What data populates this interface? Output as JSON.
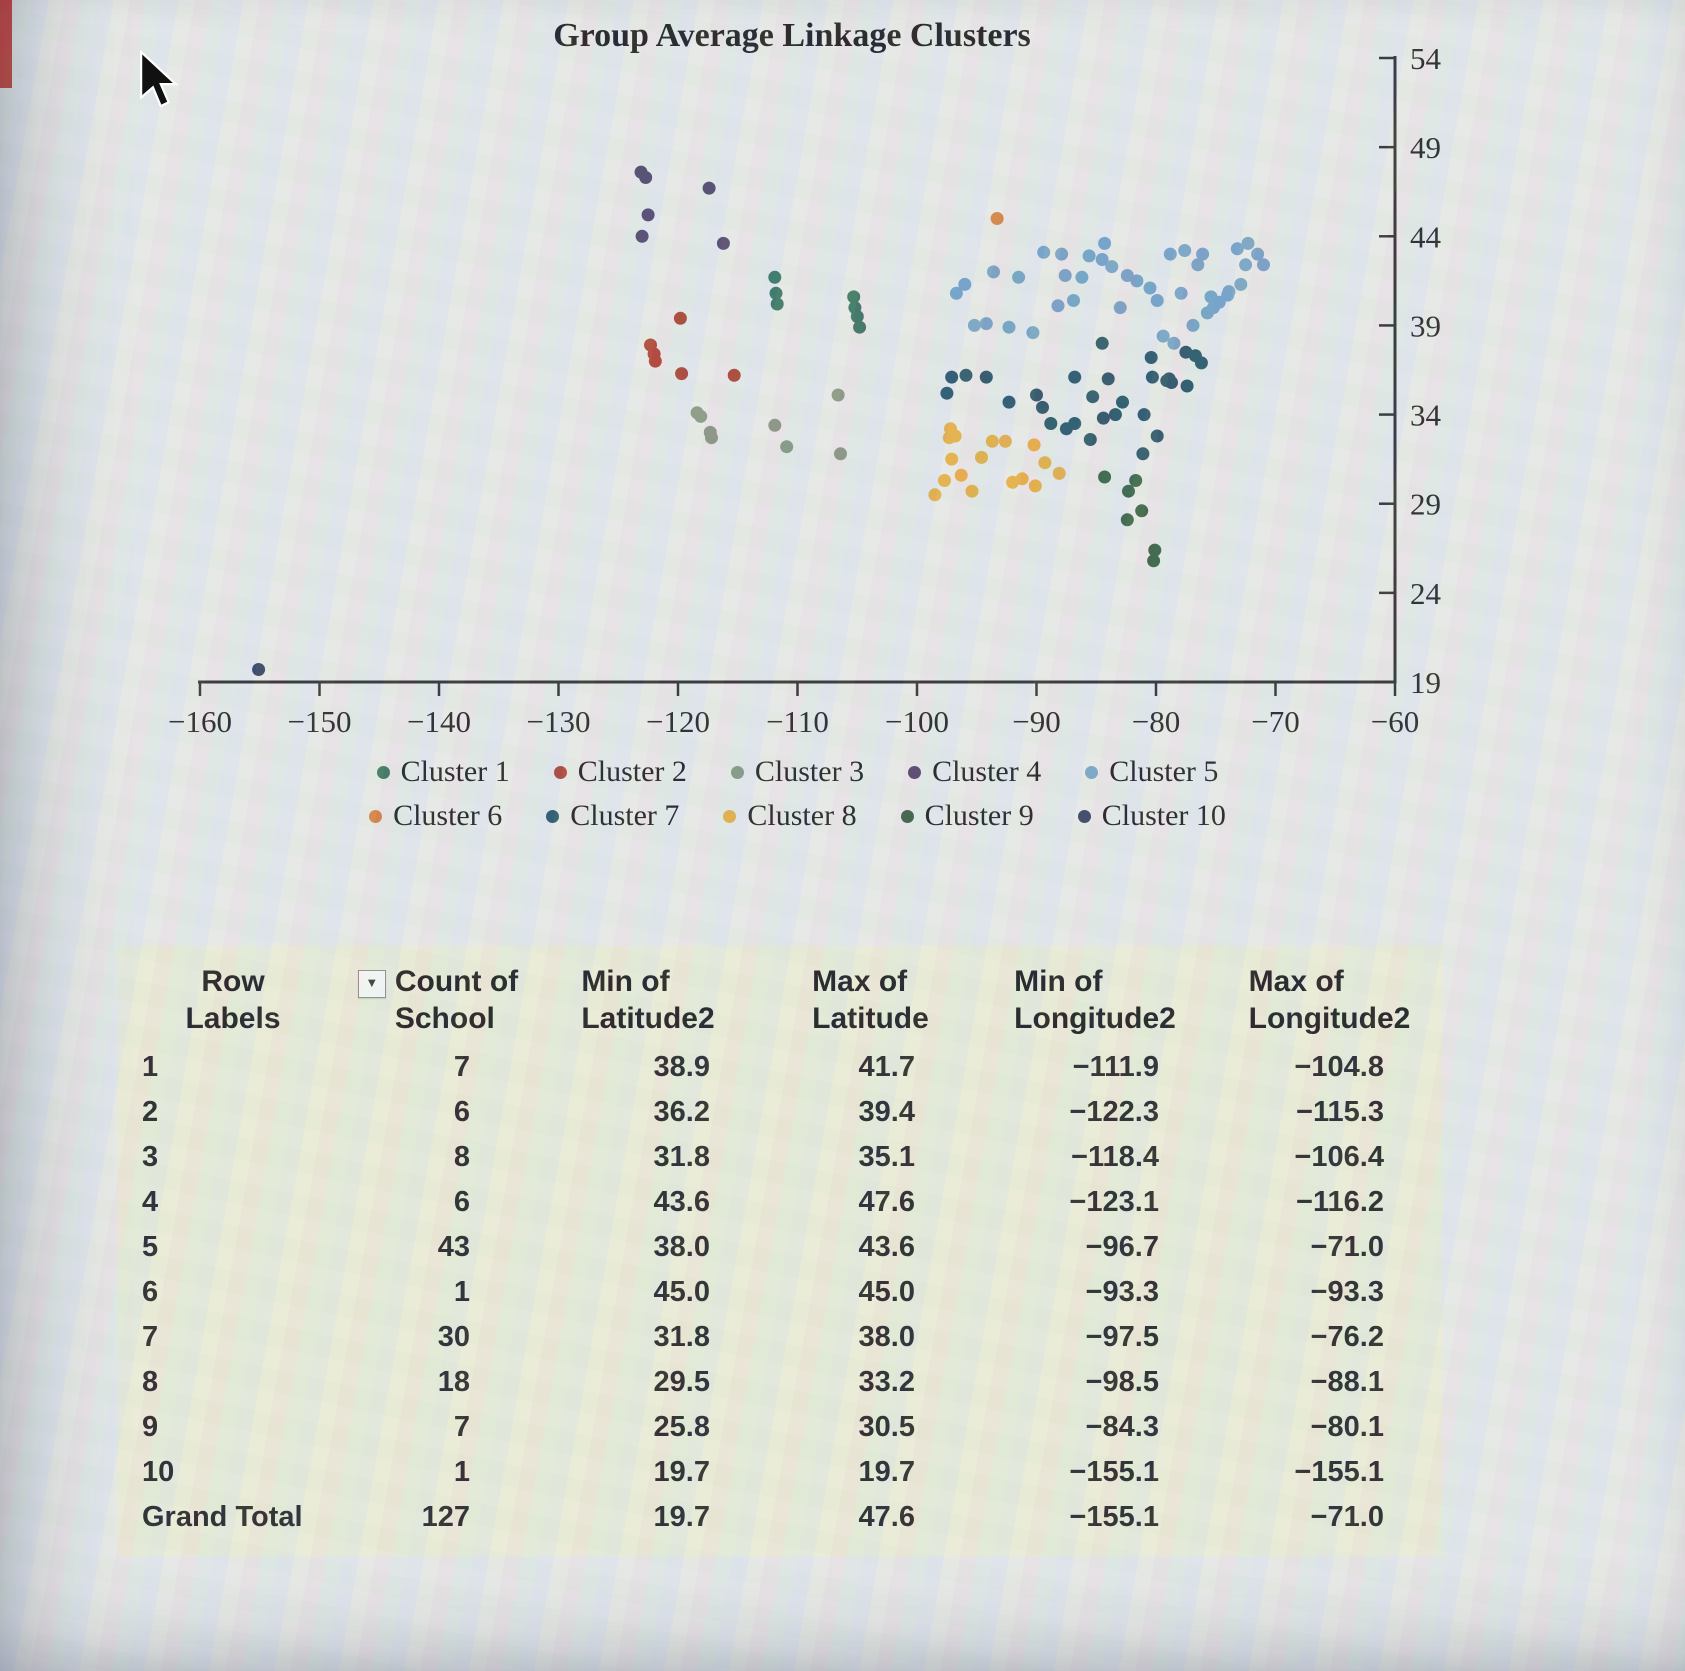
{
  "chart_data": {
    "type": "scatter",
    "title": "Group Average Linkage Clusters",
    "xlabel": "",
    "ylabel": "",
    "xlim": [
      -160,
      -60
    ],
    "ylim": [
      19,
      54
    ],
    "x_ticks": [
      -160,
      -150,
      -140,
      -130,
      -120,
      -110,
      -100,
      -90,
      -80,
      -70,
      -60
    ],
    "y_ticks": [
      19,
      24,
      29,
      34,
      39,
      44,
      49,
      54
    ],
    "grid": false,
    "legend_position": "bottom",
    "series": [
      {
        "name": "Cluster 1",
        "color": "#2e6f5e",
        "points": [
          [
            -111.9,
            41.7
          ],
          [
            -111.8,
            40.8
          ],
          [
            -111.7,
            40.2
          ],
          [
            -105.3,
            40.6
          ],
          [
            -105.2,
            40.0
          ],
          [
            -105.0,
            39.5
          ],
          [
            -104.8,
            38.9
          ]
        ]
      },
      {
        "name": "Cluster 2",
        "color": "#a93a2e",
        "points": [
          [
            -122.3,
            37.9
          ],
          [
            -122.0,
            37.4
          ],
          [
            -121.9,
            37.0
          ],
          [
            -119.8,
            39.4
          ],
          [
            -119.7,
            36.3
          ],
          [
            -115.3,
            36.2
          ]
        ]
      },
      {
        "name": "Cluster 3",
        "color": "#7f9180",
        "points": [
          [
            -118.4,
            34.1
          ],
          [
            -118.1,
            33.9
          ],
          [
            -117.3,
            33.0
          ],
          [
            -117.2,
            32.7
          ],
          [
            -111.9,
            33.4
          ],
          [
            -110.9,
            32.2
          ],
          [
            -106.6,
            35.1
          ],
          [
            -106.4,
            31.8
          ]
        ]
      },
      {
        "name": "Cluster 4",
        "color": "#4a3f68",
        "points": [
          [
            -123.1,
            47.6
          ],
          [
            -122.7,
            47.3
          ],
          [
            -117.4,
            46.7
          ],
          [
            -123.0,
            44.0
          ],
          [
            -122.5,
            45.2
          ],
          [
            -116.2,
            43.6
          ]
        ]
      },
      {
        "name": "Cluster 5",
        "color": "#6d9dc5",
        "points": [
          [
            -71.0,
            42.4
          ],
          [
            -71.5,
            43.0
          ],
          [
            -72.3,
            43.6
          ],
          [
            -72.9,
            41.3
          ],
          [
            -73.2,
            43.3
          ],
          [
            -73.9,
            40.9
          ],
          [
            -74.0,
            40.7
          ],
          [
            -74.7,
            40.3
          ],
          [
            -75.2,
            40.0
          ],
          [
            -75.7,
            39.7
          ],
          [
            -76.5,
            42.4
          ],
          [
            -76.1,
            43.0
          ],
          [
            -76.9,
            39.0
          ],
          [
            -77.6,
            43.2
          ],
          [
            -77.9,
            40.8
          ],
          [
            -78.8,
            43.0
          ],
          [
            -78.5,
            38.0
          ],
          [
            -79.4,
            38.4
          ],
          [
            -79.9,
            40.4
          ],
          [
            -80.5,
            41.1
          ],
          [
            -81.6,
            41.5
          ],
          [
            -82.4,
            41.8
          ],
          [
            -83.0,
            40.0
          ],
          [
            -83.7,
            42.3
          ],
          [
            -84.5,
            42.7
          ],
          [
            -84.3,
            43.6
          ],
          [
            -85.6,
            42.9
          ],
          [
            -86.2,
            41.7
          ],
          [
            -86.9,
            40.4
          ],
          [
            -87.6,
            41.8
          ],
          [
            -87.9,
            43.0
          ],
          [
            -88.2,
            40.1
          ],
          [
            -89.4,
            43.1
          ],
          [
            -90.3,
            38.6
          ],
          [
            -91.5,
            41.7
          ],
          [
            -92.3,
            38.9
          ],
          [
            -93.6,
            42.0
          ],
          [
            -94.2,
            39.1
          ],
          [
            -95.2,
            39.0
          ],
          [
            -96.0,
            41.3
          ],
          [
            -96.7,
            40.8
          ],
          [
            -75.4,
            40.6
          ],
          [
            -72.5,
            42.4
          ]
        ]
      },
      {
        "name": "Cluster 6",
        "color": "#d0793c",
        "points": [
          [
            -93.3,
            45.0
          ]
        ]
      },
      {
        "name": "Cluster 7",
        "color": "#1f4e64",
        "points": [
          [
            -97.5,
            35.2
          ],
          [
            -97.1,
            36.1
          ],
          [
            -95.9,
            36.2
          ],
          [
            -94.2,
            36.1
          ],
          [
            -92.3,
            34.7
          ],
          [
            -90.0,
            35.1
          ],
          [
            -89.5,
            34.4
          ],
          [
            -88.8,
            33.5
          ],
          [
            -87.5,
            33.2
          ],
          [
            -86.8,
            36.1
          ],
          [
            -86.8,
            33.5
          ],
          [
            -85.5,
            32.6
          ],
          [
            -85.3,
            35.0
          ],
          [
            -84.4,
            33.8
          ],
          [
            -84.0,
            36.0
          ],
          [
            -84.5,
            38.0
          ],
          [
            -83.4,
            34.0
          ],
          [
            -82.8,
            34.7
          ],
          [
            -81.0,
            34.0
          ],
          [
            -81.1,
            31.8
          ],
          [
            -80.3,
            36.1
          ],
          [
            -79.9,
            32.8
          ],
          [
            -79.1,
            35.9
          ],
          [
            -78.9,
            36.0
          ],
          [
            -78.7,
            35.8
          ],
          [
            -80.4,
            37.2
          ],
          [
            -77.5,
            37.5
          ],
          [
            -76.7,
            37.3
          ],
          [
            -76.2,
            36.9
          ],
          [
            -77.4,
            35.6
          ]
        ]
      },
      {
        "name": "Cluster 8",
        "color": "#e3a93f",
        "points": [
          [
            -98.5,
            29.5
          ],
          [
            -97.7,
            30.3
          ],
          [
            -97.1,
            31.5
          ],
          [
            -96.3,
            30.6
          ],
          [
            -95.4,
            29.7
          ],
          [
            -96.8,
            32.8
          ],
          [
            -97.3,
            32.7
          ],
          [
            -97.1,
            32.9
          ],
          [
            -97.2,
            33.2
          ],
          [
            -94.6,
            31.6
          ],
          [
            -93.7,
            32.5
          ],
          [
            -92.6,
            32.5
          ],
          [
            -92.0,
            30.2
          ],
          [
            -91.2,
            30.4
          ],
          [
            -90.1,
            30.0
          ],
          [
            -90.2,
            32.3
          ],
          [
            -89.3,
            31.3
          ],
          [
            -88.1,
            30.7
          ]
        ]
      },
      {
        "name": "Cluster 9",
        "color": "#2f5c3f",
        "points": [
          [
            -84.3,
            30.5
          ],
          [
            -82.3,
            29.7
          ],
          [
            -81.7,
            30.3
          ],
          [
            -81.2,
            28.6
          ],
          [
            -82.4,
            28.1
          ],
          [
            -80.1,
            26.4
          ],
          [
            -80.2,
            25.8
          ]
        ]
      },
      {
        "name": "Cluster 10",
        "color": "#27375f",
        "points": [
          [
            -155.1,
            19.7
          ]
        ]
      }
    ]
  },
  "table": {
    "headers": [
      "Row\nLabels",
      "Count of\nSchool",
      "Min of\nLatitude2",
      "Max of\nLatitude",
      "Min of\nLongitude2",
      "Max of\nLongitude2"
    ],
    "filter_icon": "▼",
    "rows": [
      [
        "1",
        "7",
        "38.9",
        "41.7",
        "−111.9",
        "−104.8"
      ],
      [
        "2",
        "6",
        "36.2",
        "39.4",
        "−122.3",
        "−115.3"
      ],
      [
        "3",
        "8",
        "31.8",
        "35.1",
        "−118.4",
        "−106.4"
      ],
      [
        "4",
        "6",
        "43.6",
        "47.6",
        "−123.1",
        "−116.2"
      ],
      [
        "5",
        "43",
        "38.0",
        "43.6",
        "−96.7",
        "−71.0"
      ],
      [
        "6",
        "1",
        "45.0",
        "45.0",
        "−93.3",
        "−93.3"
      ],
      [
        "7",
        "30",
        "31.8",
        "38.0",
        "−97.5",
        "−76.2"
      ],
      [
        "8",
        "18",
        "29.5",
        "33.2",
        "−98.5",
        "−88.1"
      ],
      [
        "9",
        "7",
        "25.8",
        "30.5",
        "−84.3",
        "−80.1"
      ],
      [
        "10",
        "1",
        "19.7",
        "19.7",
        "−155.1",
        "−155.1"
      ],
      [
        "Grand Total",
        "127",
        "19.7",
        "47.6",
        "−155.1",
        "−71.0"
      ]
    ]
  }
}
